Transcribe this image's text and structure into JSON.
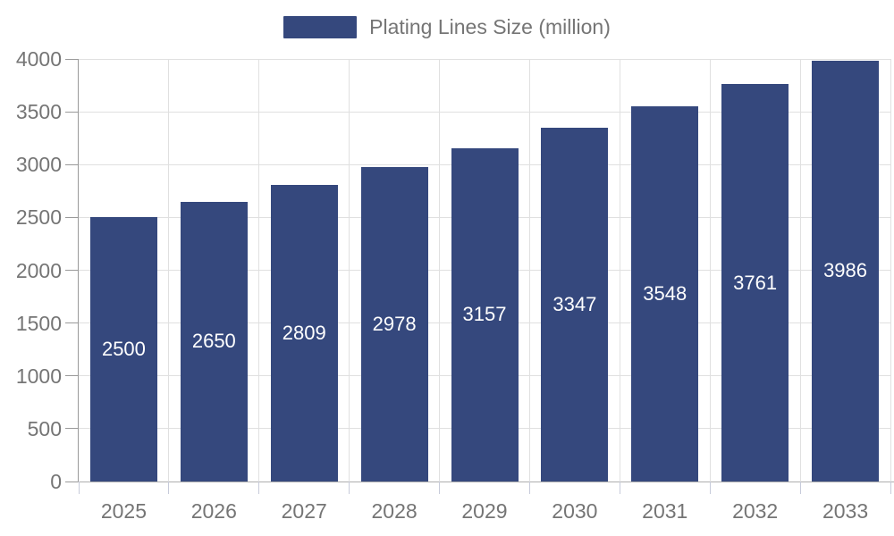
{
  "chart_data": {
    "type": "bar",
    "title": "",
    "legend_label": "Plating Lines Size (million)",
    "legend_position": "top",
    "categories": [
      "2025",
      "2026",
      "2027",
      "2028",
      "2029",
      "2030",
      "2031",
      "2032",
      "2033"
    ],
    "series": [
      {
        "name": "Plating Lines Size (million)",
        "values": [
          2500,
          2650,
          2809,
          2978,
          3157,
          3347,
          3548,
          3761,
          3986
        ]
      }
    ],
    "bar_labels": [
      "2500",
      "2650",
      "2809",
      "2978",
      "3157",
      "3347",
      "3548",
      "3761",
      "3986"
    ],
    "xlabel": "",
    "ylabel": "",
    "ylim": [
      0,
      4000
    ],
    "yticks": [
      0,
      500,
      1000,
      1500,
      2000,
      2500,
      3000,
      3500,
      4000
    ],
    "grid": true,
    "colors": {
      "bar": "#35487D",
      "bar_label": "#ffffff",
      "axis_text": "#757575",
      "gridline": "#e0e0e0",
      "axis_line": "#aeaeae",
      "background": "#ffffff"
    }
  }
}
